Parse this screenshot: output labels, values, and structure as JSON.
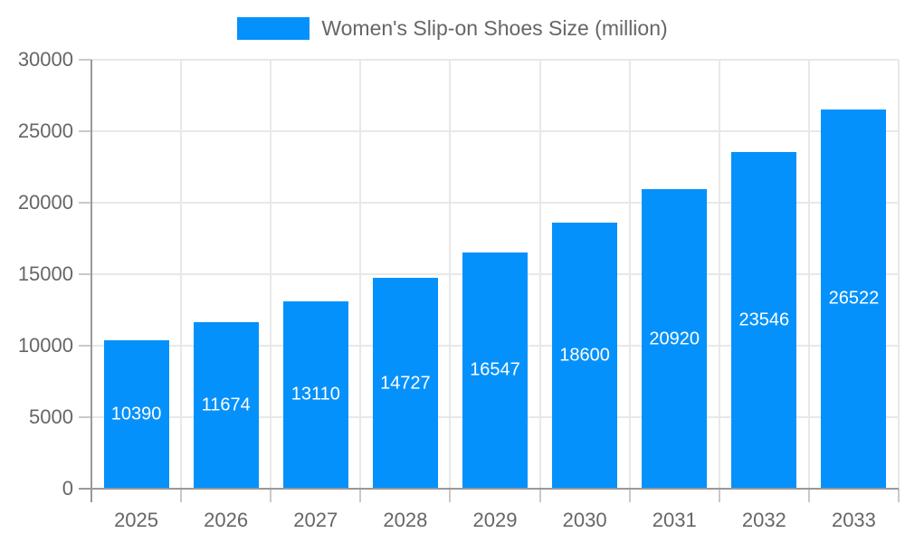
{
  "chart_data": {
    "type": "bar",
    "title": "Women's Slip-on Shoes Size (million)",
    "categories": [
      "2025",
      "2026",
      "2027",
      "2028",
      "2029",
      "2030",
      "2031",
      "2032",
      "2033"
    ],
    "series": [
      {
        "name": "Women's Slip-on Shoes Size (million)",
        "values": [
          10390,
          11674,
          13110,
          14727,
          16547,
          18600,
          20920,
          23546,
          26522
        ]
      }
    ],
    "xlabel": "",
    "ylabel": "",
    "ylim": [
      0,
      30000
    ],
    "yticks": [
      0,
      5000,
      10000,
      15000,
      20000,
      25000,
      30000
    ],
    "grid": true,
    "legend_position": "top",
    "value_labels": "inside-center"
  },
  "legend": {
    "label": "Women's Slip-on Shoes Size (million)"
  },
  "colors": {
    "bar": "#0591FB",
    "bar_value_text": "#ffffff",
    "axis_line": "#999999",
    "grid_line": "#e8e8e8",
    "tick_line": "#c9c9c9",
    "axis_text": "#666666",
    "legend_text": "#666666",
    "background": "#ffffff"
  }
}
